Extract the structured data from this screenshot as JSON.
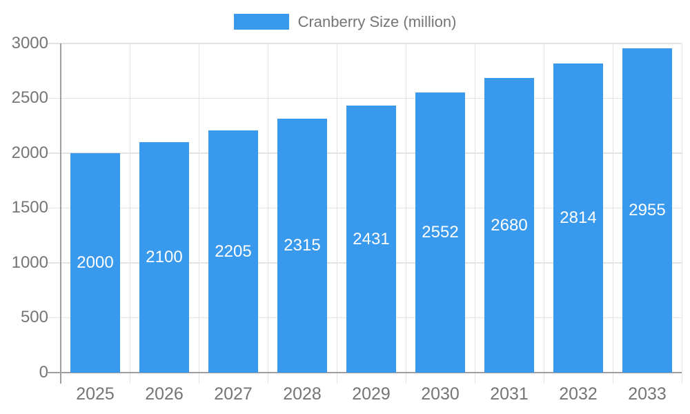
{
  "chart_data": {
    "type": "bar",
    "title": "",
    "legend": "Cranberry Size (million)",
    "categories": [
      "2025",
      "2026",
      "2027",
      "2028",
      "2029",
      "2030",
      "2031",
      "2032",
      "2033"
    ],
    "values": [
      2000,
      2100,
      2205,
      2315,
      2431,
      2552,
      2680,
      2814,
      2955
    ],
    "xlabel": "",
    "ylabel": "",
    "ylim": [
      0,
      3000
    ],
    "yticks": [
      0,
      500,
      1000,
      1500,
      2000,
      2500,
      3000
    ],
    "grid": "both",
    "legend_position": "top-center",
    "bar_labels_inside": true,
    "colors": {
      "bar": "#3999EC",
      "bar_label_text": "#FFFFFF",
      "axis_text": "#757575",
      "axis_line": "#9E9E9E",
      "grid_line": "#E3E3E3",
      "background": "#FFFFFF"
    }
  }
}
